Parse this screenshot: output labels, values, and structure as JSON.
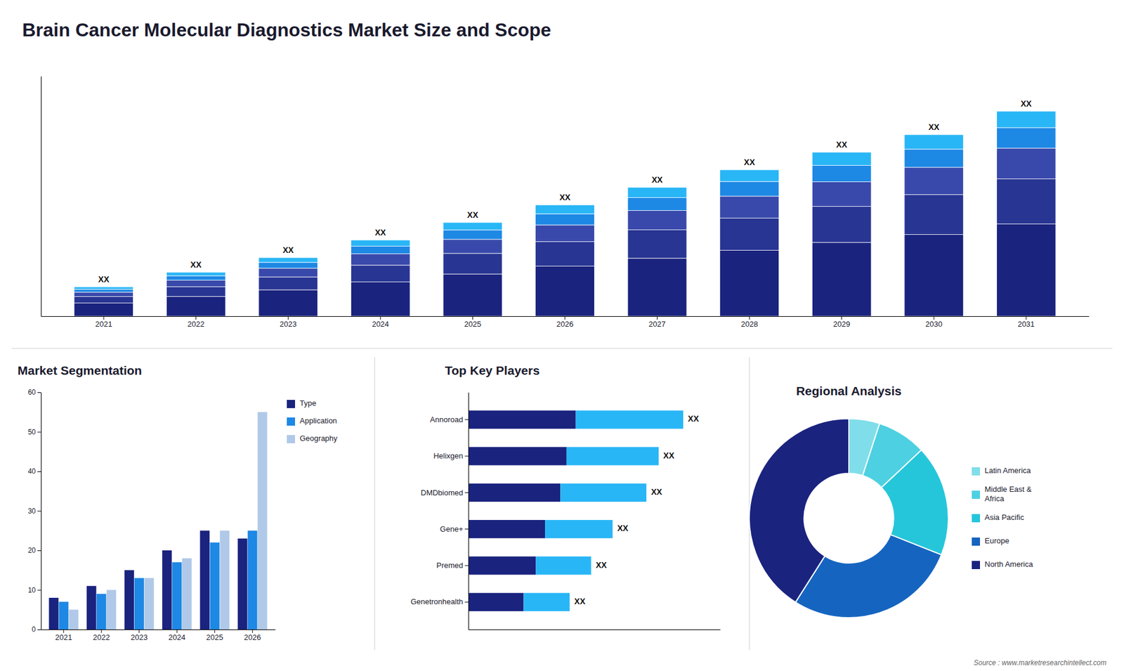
{
  "chart_data": [
    {
      "type": "bar",
      "title": "Brain Cancer Molecular Diagnostics Market Size and Scope",
      "categories": [
        "2021",
        "2022",
        "2023",
        "2024",
        "2025",
        "2026",
        "2027",
        "2028",
        "2029",
        "2030",
        "2031"
      ],
      "stacked": true,
      "series": [
        {
          "color": "#1a237e",
          "values": [
            0.45,
            0.675,
            0.9,
            1.17,
            1.44,
            1.71,
            1.98,
            2.25,
            2.52,
            2.79,
            3.15
          ]
        },
        {
          "color": "#283593",
          "values": [
            0.22,
            0.33,
            0.44,
            0.572,
            0.704,
            0.836,
            0.968,
            1.1,
            1.232,
            1.364,
            1.54
          ]
        },
        {
          "color": "#3949ab",
          "values": [
            0.15,
            0.225,
            0.3,
            0.39,
            0.48,
            0.57,
            0.66,
            0.75,
            0.84,
            0.93,
            1.05
          ]
        },
        {
          "color": "#1e88e5",
          "values": [
            0.1,
            0.15,
            0.2,
            0.26,
            0.32,
            0.38,
            0.44,
            0.5,
            0.56,
            0.62,
            0.7
          ]
        },
        {
          "color": "#29b6f6",
          "values": [
            0.08,
            0.12,
            0.16,
            0.208,
            0.256,
            0.304,
            0.352,
            0.4,
            0.448,
            0.496,
            0.56
          ]
        }
      ],
      "ylim": [
        0,
        8.2
      ],
      "tick_labels": "x",
      "grid": false,
      "data_labels": true,
      "value_labels": [
        "XX",
        "XX",
        "XX",
        "XX",
        "XX",
        "XX",
        "XX",
        "XX",
        "XX",
        "XX",
        "XX"
      ],
      "annotations": [
        "Source : www.marketresearchintellect.com"
      ]
    },
    {
      "type": "bar",
      "title": "Market Segmentation",
      "categories": [
        "2021",
        "2022",
        "2023",
        "2024",
        "2025",
        "2026"
      ],
      "series": [
        {
          "name": "Type",
          "color": "#1a237e",
          "values": [
            8,
            11,
            15,
            20,
            25,
            23
          ]
        },
        {
          "name": "Application",
          "color": "#1e88e5",
          "values": [
            7,
            9,
            13,
            17,
            22,
            25
          ]
        },
        {
          "name": "Geography",
          "color": "#b0c9e8",
          "values": [
            5,
            10,
            13,
            18,
            25,
            55
          ]
        }
      ],
      "ylim": [
        0,
        60
      ],
      "yticks": [
        0,
        10,
        20,
        30,
        40,
        50,
        60
      ],
      "grid": false,
      "legend": "right"
    },
    {
      "type": "bar",
      "title": "Top Key Players",
      "orientation": "horizontal",
      "stacked": true,
      "categories": [
        "Annoroad",
        "Helixgen",
        "DMDbiomed",
        "Gene+",
        "Premed",
        "Genetronhealth"
      ],
      "series": [
        {
          "color": "#1a237e",
          "values": [
            3.5,
            3.2,
            3.0,
            2.5,
            2.2,
            1.8
          ]
        },
        {
          "color": "#29b6f6",
          "values": [
            3.5,
            3.0,
            2.8,
            2.2,
            1.8,
            1.5
          ]
        }
      ],
      "xlim": [
        0,
        8.2
      ],
      "tick_labels": "y",
      "grid": false,
      "data_labels": true,
      "value_labels": [
        "XX",
        "XX",
        "XX",
        "XX",
        "XX",
        "XX"
      ]
    },
    {
      "type": "pie",
      "title": "Regional Analysis",
      "categories": [
        "Latin America",
        "Middle East &\nAfrica",
        "Asia Pacific",
        "Europe",
        "North America"
      ],
      "values": [
        5,
        8,
        18,
        28,
        41
      ],
      "colors": [
        "#80deea",
        "#4dd0e1",
        "#26c6da",
        "#1565c0",
        "#1a237e"
      ],
      "legend": "right"
    }
  ]
}
